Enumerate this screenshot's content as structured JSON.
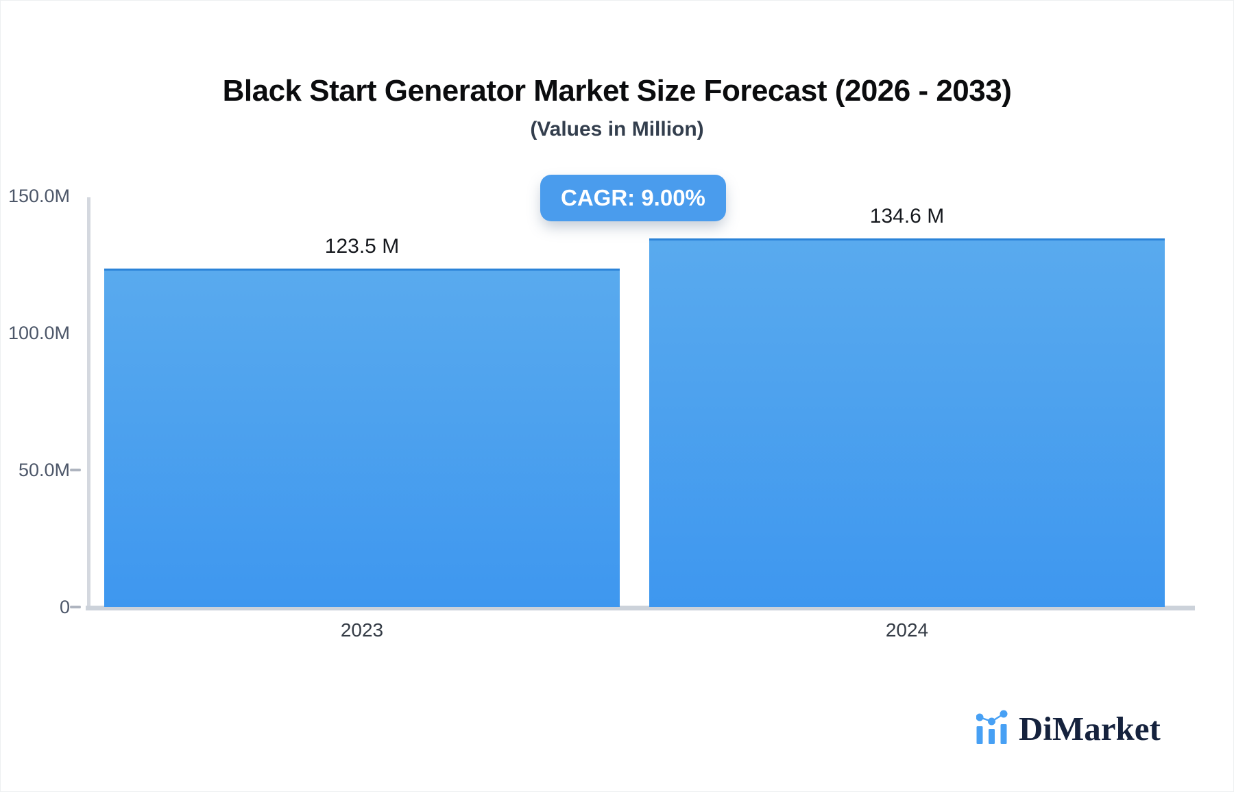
{
  "chart_data": {
    "type": "bar",
    "title": "Black Start Generator Market Size Forecast (2026 - 2033)",
    "subtitle": "(Values in Million)",
    "categories": [
      "2023",
      "2024"
    ],
    "values": [
      123.5,
      134.6
    ],
    "value_labels": [
      "123.5 M",
      "134.6 M"
    ],
    "xlabel": "",
    "ylabel": "",
    "ylim": [
      0,
      150
    ],
    "y_ticks": [
      {
        "value": 150,
        "label": "150.0M",
        "dash": false
      },
      {
        "value": 100,
        "label": "100.0M",
        "dash": false
      },
      {
        "value": 50,
        "label": "50.0M",
        "dash": true
      },
      {
        "value": 0,
        "label": "0",
        "dash": true
      }
    ],
    "grid": false,
    "legend": "none",
    "bar_color_top": "#59aaee",
    "bar_color_bottom": "#3e97ef",
    "bar_border_color": "#2b83d8"
  },
  "cagr_badge": {
    "label": "CAGR: 9.00%",
    "background": "#4a9ced"
  },
  "brand": {
    "name": "DiMarket",
    "icon": "mini-bar-line-chart-icon",
    "icon_color": "#47a0f4",
    "text_color": "#15223d"
  }
}
